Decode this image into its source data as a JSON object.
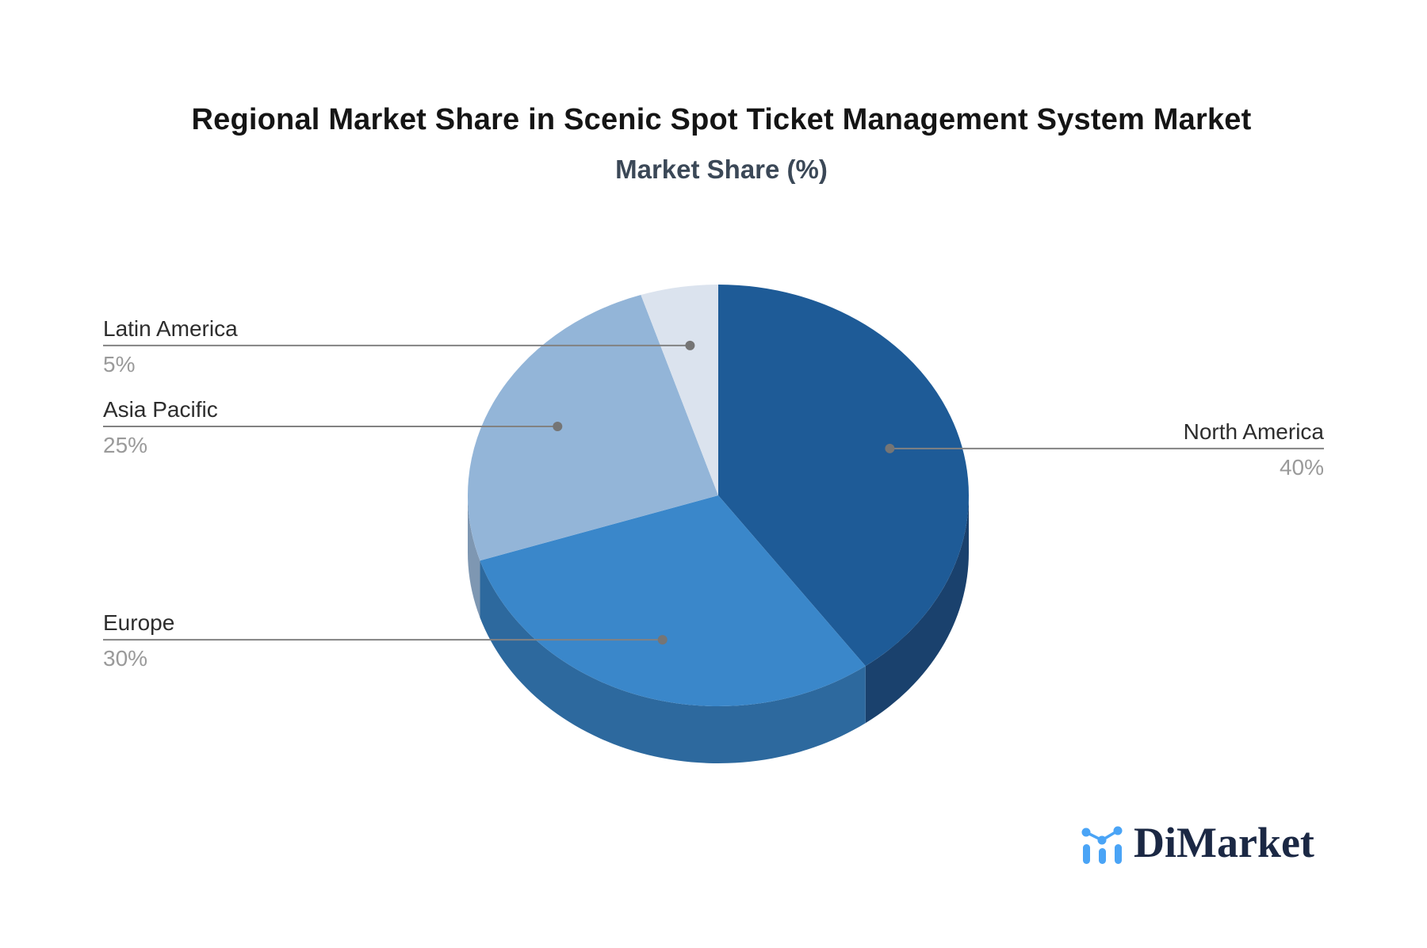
{
  "title": "Regional Market Share in Scenic Spot Ticket Management System Market",
  "subtitle": "Market Share (%)",
  "brand": {
    "name": "DiMarket",
    "icon": "bar-chart-logo-icon",
    "icon_color": "#4aa4f6",
    "text_color": "#1b2844"
  },
  "leader_line_color": "#828282",
  "leader_dot_color": "#757575",
  "chart_data": {
    "type": "pie",
    "style": "3d",
    "title": "Regional Market Share in Scenic Spot Ticket Management System Market",
    "subtitle": "Market Share (%)",
    "unit": "%",
    "start_angle_deg": 90,
    "direction": "clockwise",
    "legend_position": "callout-labels",
    "slices": [
      {
        "label": "North America",
        "value": 40,
        "color": "#1e5b97",
        "side_color": "#1a416d"
      },
      {
        "label": "Europe",
        "value": 30,
        "color": "#3a87ca",
        "side_color": "#2d699e"
      },
      {
        "label": "Asia Pacific",
        "value": 25,
        "color": "#93b5d8",
        "side_color": "#7e97b2"
      },
      {
        "label": "Latin America",
        "value": 5,
        "color": "#dbe3ee",
        "side_color": "#c3cdda"
      }
    ]
  }
}
